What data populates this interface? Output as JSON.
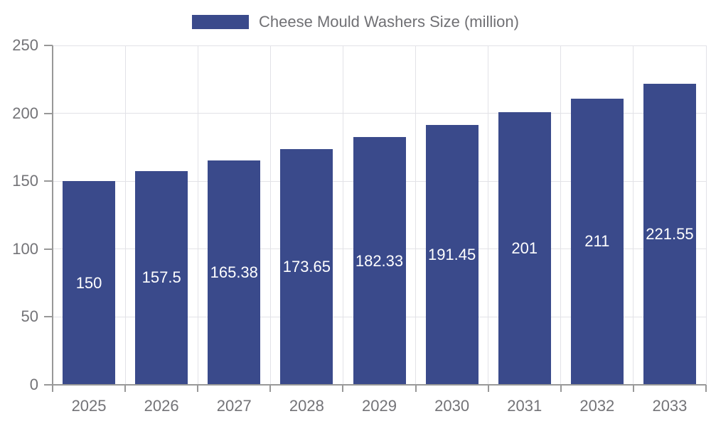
{
  "legend": {
    "label": "Cheese Mould Washers Size (million)"
  },
  "chart_data": {
    "type": "bar",
    "title": "Cheese Mould Washers Size (million)",
    "categories": [
      "2025",
      "2026",
      "2027",
      "2028",
      "2029",
      "2030",
      "2031",
      "2032",
      "2033"
    ],
    "values": [
      150,
      157.5,
      165.38,
      173.65,
      182.33,
      191.45,
      201,
      211,
      221.55
    ],
    "value_labels": [
      "150",
      "157.5",
      "165.38",
      "173.65",
      "182.33",
      "191.45",
      "201",
      "211",
      "221.55"
    ],
    "xlabel": "",
    "ylabel": "",
    "ylim": [
      0,
      250
    ],
    "yticks": [
      0,
      50,
      100,
      150,
      200,
      250
    ],
    "grid": "horizontal-and-vertical",
    "legend_position": "top-center",
    "value_label_position": "inside-middle",
    "colors": {
      "bar": "#3A4A8B",
      "axis_line": "#989898",
      "gridline": "#E2E2E7",
      "axis_text": "#737377",
      "legend_text": "#707074",
      "value_label_text": "#FFFFFF",
      "background": "#FFFFFF"
    }
  }
}
